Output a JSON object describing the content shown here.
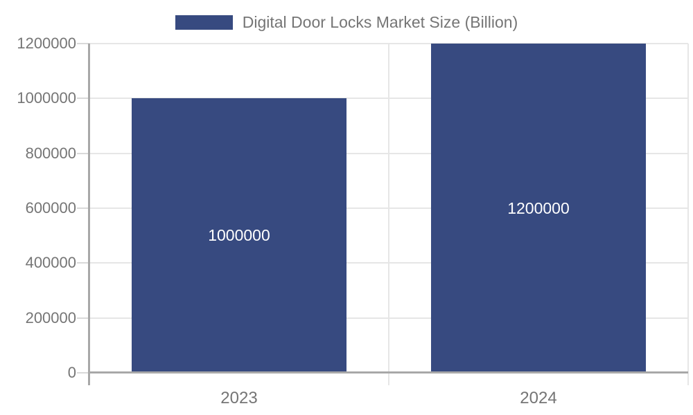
{
  "chart_data": {
    "type": "bar",
    "title": "Digital Door Locks Market Size (Billion)",
    "legend": {
      "label": "Digital Door Locks Market Size (Billion)",
      "position": "top"
    },
    "categories": [
      "2023",
      "2024"
    ],
    "series": [
      {
        "name": "Digital Door Locks Market Size (Billion)",
        "values": [
          1000000,
          1200000
        ]
      }
    ],
    "bar_value_labels": [
      "1000000",
      "1200000"
    ],
    "xlabel": "",
    "ylabel": "",
    "ylim": [
      0,
      1200000
    ],
    "y_ticks": [
      0,
      200000,
      400000,
      600000,
      800000,
      1000000,
      1200000
    ],
    "grid": true,
    "colors": {
      "bar": "#374a80",
      "bar_label_text": "#ffffff",
      "axis_text": "#757575",
      "gridline": "#e6e6e6",
      "tick": "#d9d9d9",
      "axis_line": "#a8a8a8",
      "background": "#ffffff"
    }
  }
}
